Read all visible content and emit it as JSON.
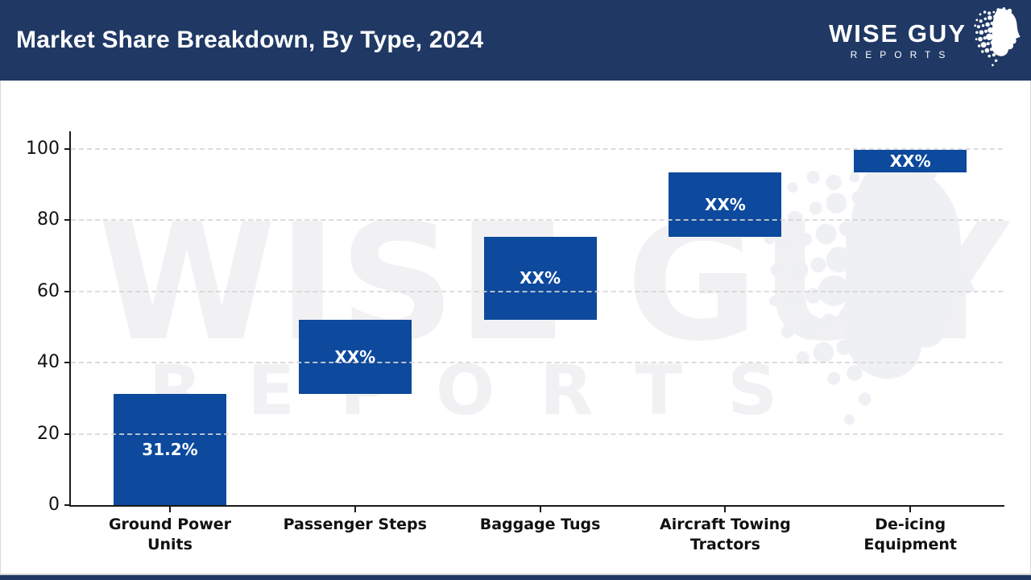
{
  "header": {
    "title": "Market Share Breakdown, By Type, 2024",
    "logo": {
      "brand": "WISE GUY",
      "sub": "REPORTS"
    }
  },
  "watermark": {
    "brand": "WISE GUY",
    "sub": "REPORTS"
  },
  "footer": {},
  "chart_data": {
    "type": "bar",
    "subtype": "waterfall",
    "title": "Market Share Breakdown, By Type, 2024",
    "categories": [
      "Ground Power Units",
      "Passenger Steps",
      "Baggage Tugs",
      "Aircraft Towing Tractors",
      "De-icing Equipment"
    ],
    "segments": [
      {
        "category": "Ground Power Units",
        "start": 0,
        "end": 31.2,
        "value": 31.2,
        "value_label": "31.2%"
      },
      {
        "category": "Passenger Steps",
        "start": 31.2,
        "end": 52.0,
        "value": 20.8,
        "value_label": "XX%"
      },
      {
        "category": "Baggage Tugs",
        "start": 52.0,
        "end": 75.4,
        "value": 23.4,
        "value_label": "XX%"
      },
      {
        "category": "Aircraft Towing Tractors",
        "start": 75.4,
        "end": 93.5,
        "value": 18.1,
        "value_label": "XX%"
      },
      {
        "category": "De-icing Equipment",
        "start": 93.5,
        "end": 99.7,
        "value": 6.2,
        "value_label": "XX%"
      }
    ],
    "y_ticks": [
      0,
      20,
      40,
      60,
      80,
      100
    ],
    "ylim": [
      0,
      105
    ],
    "xlabel": "",
    "ylabel": "",
    "grid": true,
    "grid_style": "dashed",
    "legend": "none",
    "bar_color": "#0d499c",
    "header_color": "#1f3864",
    "value_label_color": "#ffffff"
  }
}
